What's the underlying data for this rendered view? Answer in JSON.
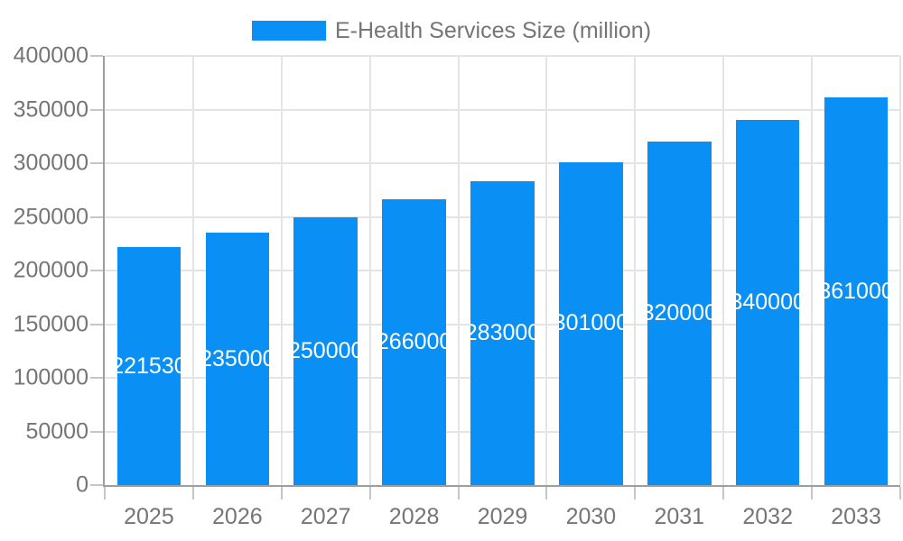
{
  "legend": {
    "label": "E-Health Services Size (million)"
  },
  "colors": {
    "bar": "#0a90f5",
    "axis": "#9e9e9e",
    "gridline": "#e4e4e4",
    "tick": "#c6c6c6",
    "tick_label": "#757575",
    "value_label": "#ffffff"
  },
  "chart_data": {
    "type": "bar",
    "title": "E-Health Services Size (million)",
    "categories": [
      "2025",
      "2026",
      "2027",
      "2028",
      "2029",
      "2030",
      "2031",
      "2032",
      "2033"
    ],
    "values": [
      221530,
      235000,
      250000,
      266000,
      283000,
      301000,
      320000,
      340000,
      361000
    ],
    "xlabel": "",
    "ylabel": "",
    "ylim": [
      0,
      400000
    ],
    "ytick_step": 50000,
    "grid": true,
    "legend_position": "top",
    "value_labels": "inside-center"
  }
}
